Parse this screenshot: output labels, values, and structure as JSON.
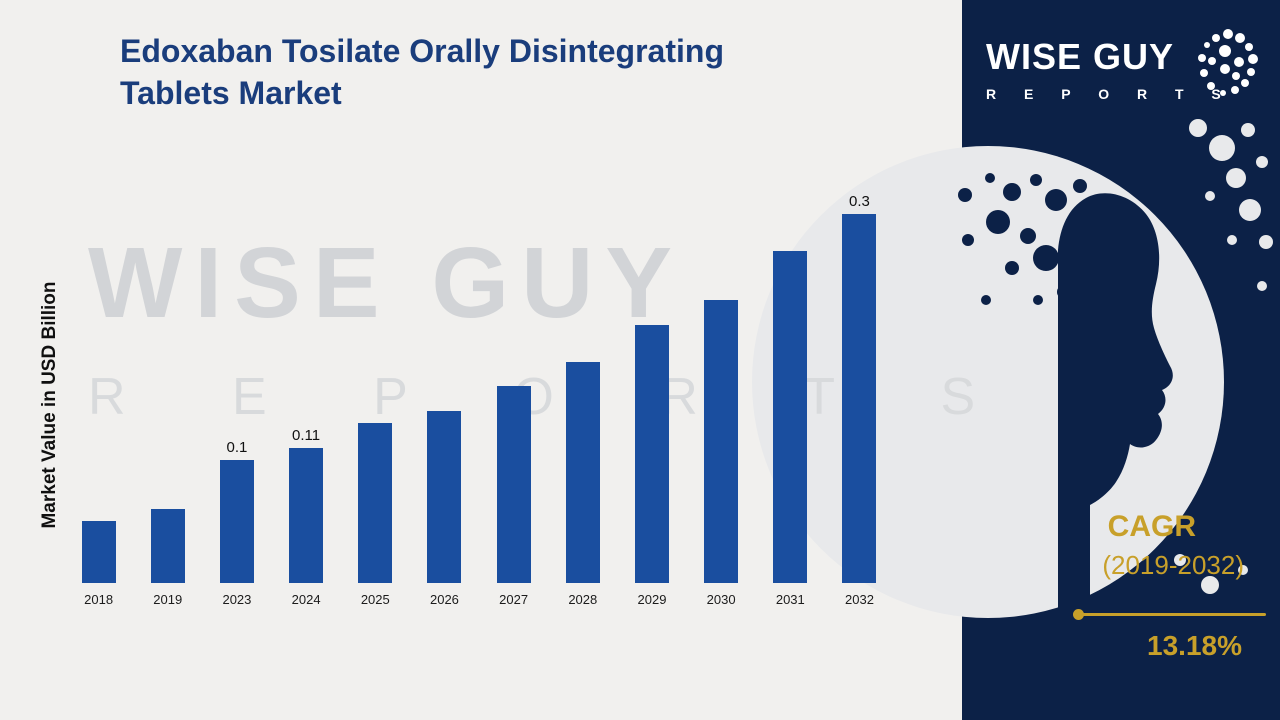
{
  "title": "Edoxaban Tosilate Orally Disintegrating Tablets Market",
  "watermark": {
    "line1": "WISE GUY",
    "line2": "R E P O R T S"
  },
  "logo": {
    "line1": "WISE GUY",
    "line2": "R E P O R T S"
  },
  "sidebar": {
    "cagr_label": "CAGR",
    "cagr_period": "(2019-2032)",
    "cagr_value": "13.18%"
  },
  "icons": {
    "logo-face-icon": "dotted human head profile",
    "face-profile-decoration": "human face profile silhouette",
    "dots-pattern": "decorative halftone dots"
  },
  "colors": {
    "background": "#f1f0ee",
    "panel": "#0c2147",
    "bar": "#1a4e9f",
    "title": "#1a3d7c",
    "gold": "#c8a02a",
    "circle": "#e8e9eb"
  },
  "chart_data": {
    "type": "bar",
    "title": "Edoxaban Tosilate Orally Disintegrating Tablets Market",
    "xlabel": "",
    "ylabel": "Market Value in USD Billion",
    "categories": [
      "2018",
      "2019",
      "2023",
      "2024",
      "2025",
      "2026",
      "2027",
      "2028",
      "2029",
      "2030",
      "2031",
      "2032"
    ],
    "values": [
      0.05,
      0.06,
      0.1,
      0.11,
      0.13,
      0.14,
      0.16,
      0.18,
      0.21,
      0.23,
      0.27,
      0.3
    ],
    "value_labels": [
      "",
      "",
      "0.1",
      "0.11",
      "",
      "",
      "",
      "",
      "",
      "",
      "",
      "0.3"
    ],
    "ylim": [
      0,
      0.326
    ],
    "grid": false,
    "legend": false
  }
}
